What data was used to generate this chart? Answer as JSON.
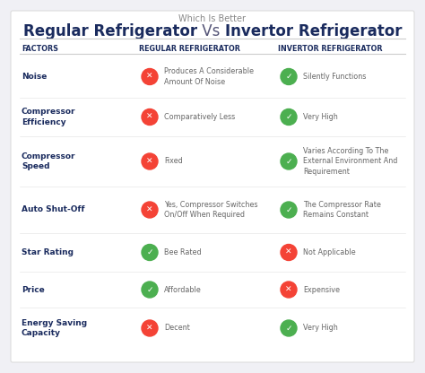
{
  "subtitle": "Which Is Better",
  "title_regular": "Regular Refrigerator",
  "title_vs": " Vs ",
  "title_invertor": "Invertor Refrigerator",
  "col_headers": [
    "FACTORS",
    "REGULAR REFRIGERATOR",
    "INVERTOR REFRIGERATOR"
  ],
  "rows": [
    {
      "factor": "Noise",
      "regular_good": false,
      "regular_text": "Produces A Considerable\nAmount Of Noise",
      "invertor_good": true,
      "invertor_text": "Silently Functions"
    },
    {
      "factor": "Compressor\nEfficiency",
      "regular_good": false,
      "regular_text": "Comparatively Less",
      "invertor_good": true,
      "invertor_text": "Very High"
    },
    {
      "factor": "Compressor\nSpeed",
      "regular_good": false,
      "regular_text": "Fixed",
      "invertor_good": true,
      "invertor_text": "Varies According To The\nExternal Environment And\nRequirement"
    },
    {
      "factor": "Auto Shut-Off",
      "regular_good": false,
      "regular_text": "Yes, Compressor Switches\nOn/Off When Required",
      "invertor_good": true,
      "invertor_text": "The Compressor Rate\nRemains Constant"
    },
    {
      "factor": "Star Rating",
      "regular_good": true,
      "regular_text": "Bee Rated",
      "invertor_good": false,
      "invertor_text": "Not Applicable"
    },
    {
      "factor": "Price",
      "regular_good": true,
      "regular_text": "Affordable",
      "invertor_good": false,
      "invertor_text": "Expensive"
    },
    {
      "factor": "Energy Saving\nCapacity",
      "regular_good": false,
      "regular_text": "Decent",
      "invertor_good": true,
      "invertor_text": "Very High"
    }
  ],
  "good_color": "#4CAF50",
  "bad_color": "#F44336",
  "header_color": "#1a2b5e",
  "factor_color": "#1a2b5e",
  "text_color": "#666666",
  "bg_color": "#f0f0f5",
  "card_color": "#ffffff",
  "subtitle_color": "#888888",
  "vs_color": "#555577",
  "header_line_color": "#cccccc",
  "row_line_color": "#e8e8e8",
  "subtitle_fontsize": 7,
  "title_fontsize": 12,
  "col_header_fontsize": 5.8,
  "factor_fontsize": 6.5,
  "text_fontsize": 5.8
}
